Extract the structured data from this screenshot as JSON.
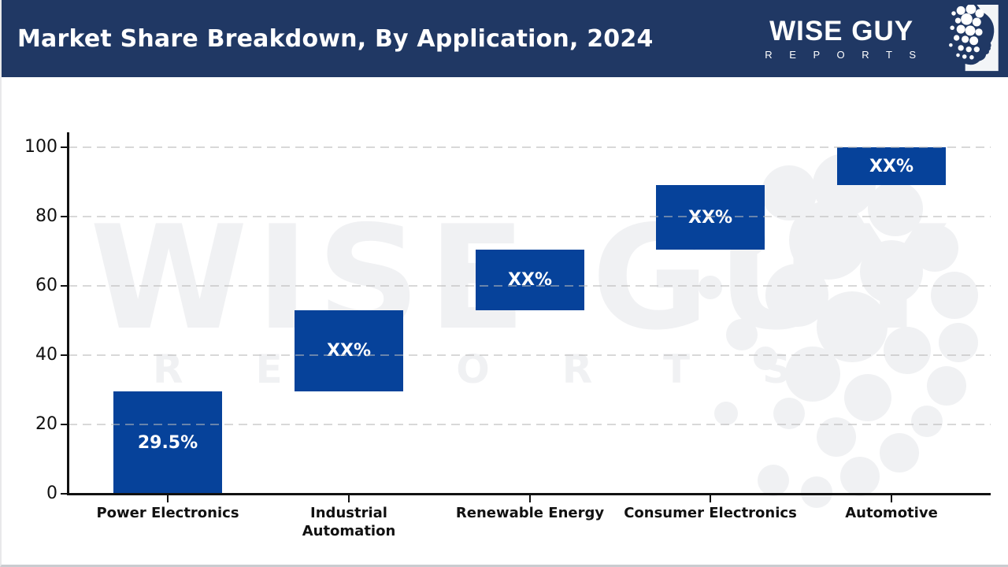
{
  "header": {
    "title": "Market Share Breakdown, By Application, 2024",
    "bg_color": "#203864",
    "logo": {
      "line1": "WISE GUY",
      "line2": "R E P O R T S",
      "mark": "dotted-head-profile"
    }
  },
  "watermark": {
    "line1": "WISE GUY",
    "line2": "REPORTS",
    "color": "#f0f1f3"
  },
  "chart_data": {
    "type": "bar",
    "subtype": "waterfall",
    "title": "Market Share Breakdown, By Application, 2024",
    "categories": [
      "Power Electronics",
      "Industrial Automation",
      "Renewable Energy",
      "Consumer Electronics",
      "Automotive"
    ],
    "segments": [
      {
        "category": "Power Electronics",
        "start": 0,
        "end": 29.5,
        "label": "29.5%"
      },
      {
        "category": "Industrial Automation",
        "start": 29.5,
        "end": 53,
        "label": "XX%"
      },
      {
        "category": "Renewable Energy",
        "start": 53,
        "end": 70.5,
        "label": "XX%"
      },
      {
        "category": "Consumer Electronics",
        "start": 70.5,
        "end": 89,
        "label": "XX%"
      },
      {
        "category": "Automotive",
        "start": 89,
        "end": 100,
        "label": "XX%"
      }
    ],
    "y_ticks": [
      0,
      20,
      40,
      60,
      80,
      100
    ],
    "ylim": [
      0,
      105
    ],
    "xlabel": "",
    "ylabel": "",
    "grid": "horizontal-dashed-over-bars",
    "legend": "none",
    "bar_color": "#06429a",
    "bar_label_color": "#ffffff",
    "axis_color": "#111111"
  }
}
